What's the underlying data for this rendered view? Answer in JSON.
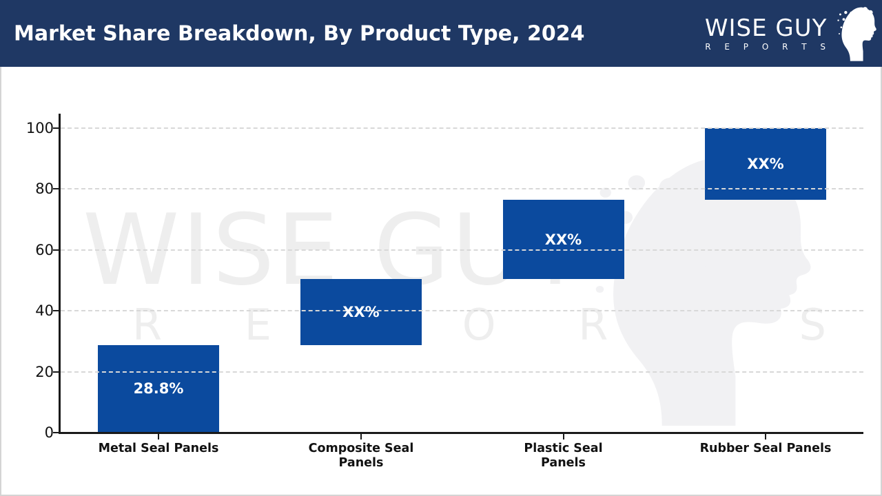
{
  "header": {
    "title": "Market Share Breakdown, By Product Type, 2024",
    "logo": {
      "line1": "WISE GUY",
      "line2": "R E P O R T S"
    }
  },
  "watermark": {
    "line1": "WISE GUY",
    "line2": "R E P O R T S"
  },
  "chart_data": {
    "type": "bar",
    "subtype": "floating-waterfall",
    "title": "Market Share Breakdown, By Product Type, 2024",
    "categories": [
      "Metal Seal Panels",
      "Composite Seal\nPanels",
      "Plastic Seal\nPanels",
      "Rubber Seal Panels"
    ],
    "bars": [
      {
        "category": "Metal Seal Panels",
        "start": 0,
        "end": 28.8,
        "label": "28.8%"
      },
      {
        "category": "Composite Seal Panels",
        "start": 28.8,
        "end": 50.4,
        "label": "XX%"
      },
      {
        "category": "Plastic Seal Panels",
        "start": 50.4,
        "end": 76.5,
        "label": "XX%"
      },
      {
        "category": "Rubber Seal Panels",
        "start": 76.5,
        "end": 100,
        "label": "XX%"
      }
    ],
    "ylim": [
      0,
      100
    ],
    "yticks": [
      0,
      20,
      40,
      60,
      80,
      100
    ],
    "xlabel": "",
    "ylabel": "",
    "grid": "horizontal-dashed",
    "legend": "none",
    "bar_color": "#0B4A9E"
  },
  "colors": {
    "header_bg": "#1F3864",
    "bar": "#0B4A9E",
    "bar_label": "#FFFFFF",
    "axis": "#1A1A1A",
    "gridline": "#D8D8D8",
    "watermark": "#EEEEEE",
    "frame_border": "#D4D4D4",
    "title_text": "#FFFFFF"
  }
}
